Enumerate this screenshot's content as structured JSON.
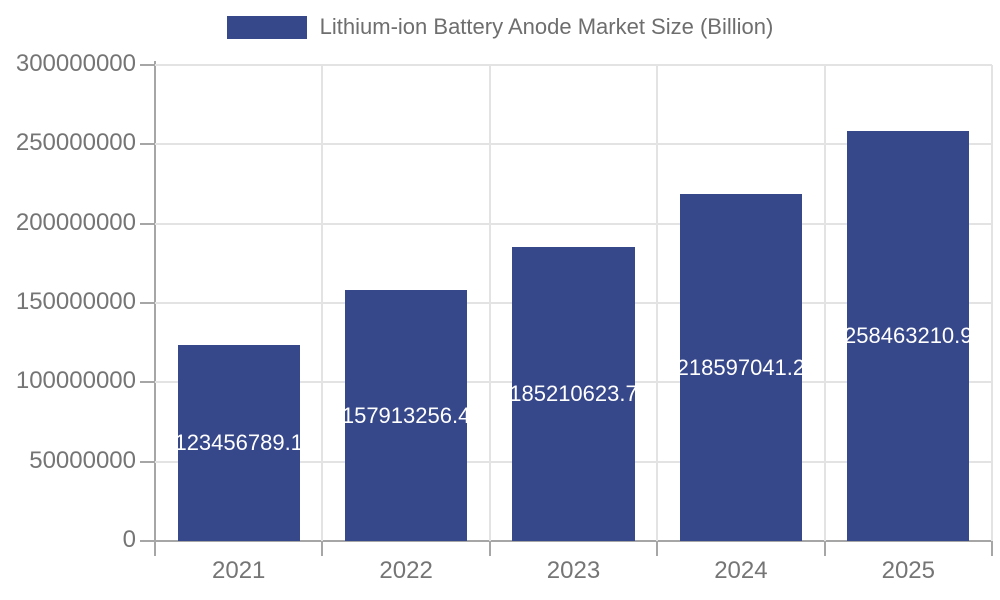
{
  "legend": {
    "label": "Lithium-ion Battery Anode Market Size (Billion)"
  },
  "chart_data": {
    "type": "bar",
    "title": "Lithium-ion Battery Anode Market Size (Billion)",
    "categories": [
      "2021",
      "2022",
      "2023",
      "2024",
      "2025"
    ],
    "values": [
      123456789.1,
      157913256.4,
      185210623.7,
      218597041.2,
      258463210.9
    ],
    "bar_labels": [
      "123456789.1",
      "157913256.4",
      "185210623.7",
      "218597041.2",
      "258463210.9"
    ],
    "xlabel": "",
    "ylabel": "",
    "ylim": [
      0,
      300000000
    ],
    "y_ticks": [
      0,
      50000000,
      100000000,
      150000000,
      200000000,
      250000000,
      300000000
    ],
    "y_tick_labels": [
      "0",
      "50000000",
      "100000000",
      "150000000",
      "200000000",
      "250000000",
      "300000000"
    ],
    "grid": true,
    "legend_position": "top-center",
    "bar_width_fraction": 0.73
  },
  "colors": {
    "bar": "#36478A",
    "grid": "#e3e3e3",
    "axis": "#a6a6a6",
    "tick_label": "#757575",
    "title": "#6e6e6e",
    "bar_label": "#ffffff",
    "background": "#ffffff"
  }
}
